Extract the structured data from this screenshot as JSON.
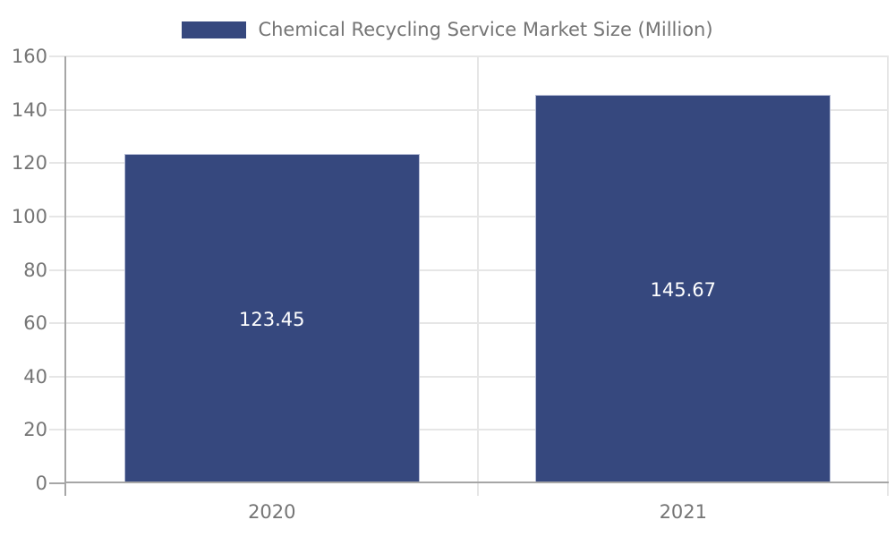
{
  "chart_data": {
    "type": "bar",
    "title": "Chemical Recycling Service Market Size (Million)",
    "categories": [
      "2020",
      "2021"
    ],
    "values": [
      123.45,
      145.67
    ],
    "value_labels": [
      "123.45",
      "145.67"
    ],
    "series": [
      {
        "name": "Chemical Recycling Service Market Size (Million)",
        "values": [
          123.45,
          145.67
        ]
      }
    ],
    "xlabel": "",
    "ylabel": "",
    "ylim": [
      0,
      160
    ],
    "ytick_interval": 20,
    "yticks": [
      0,
      20,
      40,
      60,
      80,
      100,
      120,
      140,
      160
    ],
    "grid": true,
    "legend_position": "top",
    "colors": {
      "bar_fill": "#36487E",
      "bar_border": "#B6BDD6",
      "value_label": "#FFFFFF",
      "axis_line": "#A6A6A6",
      "gridline": "#E6E6E6",
      "tick_label": "#757575",
      "legend_text": "#757575",
      "background": "#FFFFFF"
    }
  }
}
